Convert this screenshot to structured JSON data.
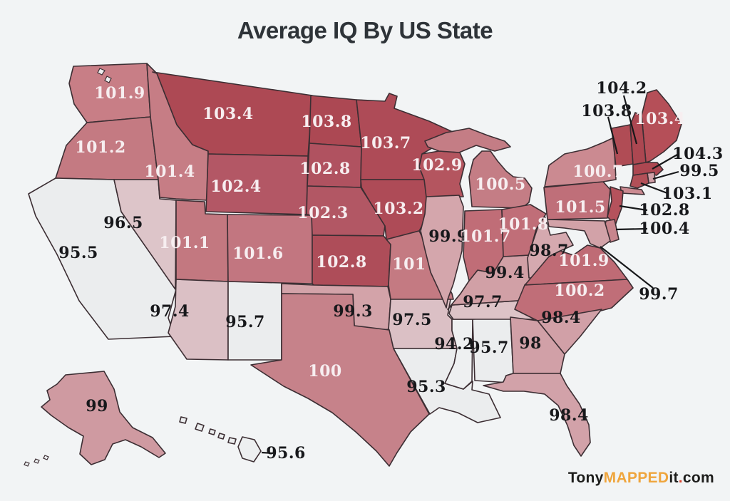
{
  "title": "Average IQ By US State",
  "map": {
    "background_color": "#f2f4f5",
    "border_color": "#3c2e33",
    "label_color_light": "#f7eef0",
    "label_color_dark": "#17181b",
    "island_fill": "#edeff0"
  },
  "states": [
    {
      "id": "WA",
      "name": "Washington",
      "value": "101.9",
      "color": "#c87e86",
      "label": "state",
      "label_style": "light"
    },
    {
      "id": "OR",
      "name": "Oregon",
      "value": "101.2",
      "color": "#c47a82",
      "label": "state",
      "label_style": "light"
    },
    {
      "id": "CA",
      "name": "California",
      "value": "95.5",
      "color": "#ebedee",
      "label": "state",
      "label_style": "dark"
    },
    {
      "id": "NV",
      "name": "Nevada",
      "value": "96.5",
      "color": "#ddc5c9",
      "label": "state",
      "label_style": "dark"
    },
    {
      "id": "ID",
      "name": "Idaho",
      "value": "101.4",
      "color": "#c67d85",
      "label": "state",
      "label_style": "light"
    },
    {
      "id": "MT",
      "name": "Montana",
      "value": "103.4",
      "color": "#ad4954",
      "label": "state",
      "label_style": "light"
    },
    {
      "id": "WY",
      "name": "Wyoming",
      "value": "102.4",
      "color": "#b35765",
      "label": "state",
      "label_style": "light"
    },
    {
      "id": "UT",
      "name": "Utah",
      "value": "101.1",
      "color": "#c37880",
      "label": "state",
      "label_style": "light"
    },
    {
      "id": "AZ",
      "name": "Arizona",
      "value": "97.4",
      "color": "#dbc0c5",
      "label": "state",
      "label_style": "dark"
    },
    {
      "id": "NM",
      "name": "New Mexico",
      "value": "95.7",
      "color": "#ebedee",
      "label": "state",
      "label_style": "dark"
    },
    {
      "id": "CO",
      "name": "Colorado",
      "value": "101.6",
      "color": "#c27680",
      "label": "state",
      "label_style": "light"
    },
    {
      "id": "ND",
      "name": "North Dakota",
      "value": "103.8",
      "color": "#ac4853",
      "label": "state",
      "label_style": "light"
    },
    {
      "id": "SD",
      "name": "South Dakota",
      "value": "102.8",
      "color": "#b05260",
      "label": "state",
      "label_style": "light"
    },
    {
      "id": "NE",
      "name": "Nebraska",
      "value": "102.3",
      "color": "#b25764",
      "label": "state",
      "label_style": "light"
    },
    {
      "id": "KS",
      "name": "Kansas",
      "value": "102.8",
      "color": "#ae4d59",
      "label": "state",
      "label_style": "light"
    },
    {
      "id": "OK",
      "name": "Oklahoma",
      "value": "99.3",
      "color": "#d3a3a9",
      "label": "state",
      "label_style": "dark"
    },
    {
      "id": "TX",
      "name": "Texas",
      "value": "100",
      "color": "#c6828a",
      "label": "state",
      "label_style": "light"
    },
    {
      "id": "MN",
      "name": "Minnesota",
      "value": "103.7",
      "color": "#ae4b57",
      "label": "state",
      "label_style": "light"
    },
    {
      "id": "IA",
      "name": "Iowa",
      "value": "103.2",
      "color": "#ae4b57",
      "label": "state",
      "label_style": "light"
    },
    {
      "id": "MO",
      "name": "Missouri",
      "value": "101",
      "color": "#c47a82",
      "label": "state",
      "label_style": "light"
    },
    {
      "id": "AR",
      "name": "Arkansas",
      "value": "97.5",
      "color": "#dbc0c5",
      "label": "state",
      "label_style": "dark"
    },
    {
      "id": "LA",
      "name": "Louisiana",
      "value": "95.3",
      "color": "#ebedee",
      "label": "state",
      "label_style": "dark"
    },
    {
      "id": "WI",
      "name": "Wisconsin",
      "value": "102.9",
      "color": "#b4555f",
      "label": "state",
      "label_style": "light"
    },
    {
      "id": "IL",
      "name": "Illinois",
      "value": "99.9",
      "color": "#d4a6ac",
      "label": "state",
      "label_style": "dark"
    },
    {
      "id": "MS",
      "name": "Mississippi",
      "value": "94.2",
      "color": "#eef0f1",
      "label": "state",
      "label_style": "dark"
    },
    {
      "id": "AL",
      "name": "Alabama",
      "value": "95.7",
      "color": "#ebedee",
      "label": "state",
      "label_style": "dark"
    },
    {
      "id": "TN",
      "name": "Tennessee",
      "value": "97.7",
      "color": "#ddc3c7",
      "label": "state",
      "label_style": "dark"
    },
    {
      "id": "KY",
      "name": "Kentucky",
      "value": "99.4",
      "color": "#d1a0a6",
      "label": "state",
      "label_style": "dark"
    },
    {
      "id": "IN",
      "name": "Indiana",
      "value": "101.7",
      "color": "#c06d77",
      "label": "state",
      "label_style": "light"
    },
    {
      "id": "MI",
      "name": "Michigan",
      "value": "100.5",
      "color": "#c47d85",
      "label": "state",
      "label_style": "light"
    },
    {
      "id": "OH",
      "name": "Ohio",
      "value": "101.8",
      "color": "#c06e78",
      "label": "state",
      "label_style": "light"
    },
    {
      "id": "WV",
      "name": "West Virginia",
      "value": "98.7",
      "color": "#d5a9af",
      "label": "state",
      "label_style": "dark"
    },
    {
      "id": "VA",
      "name": "Virginia",
      "value": "101.9",
      "color": "#bf6b75",
      "label": "state",
      "label_style": "light"
    },
    {
      "id": "NC",
      "name": "North Carolina",
      "value": "100.2",
      "color": "#c06e78",
      "label": "state",
      "label_style": "light"
    },
    {
      "id": "SC",
      "name": "South Carolina",
      "value": "98.4",
      "color": "#d1a0a7",
      "label": "state",
      "label_style": "dark"
    },
    {
      "id": "GA",
      "name": "Georgia",
      "value": "98",
      "color": "#d1a0a7",
      "label": "state",
      "label_style": "dark"
    },
    {
      "id": "FL",
      "name": "Florida",
      "value": "98.4",
      "color": "#d2a2a9",
      "label": "state",
      "label_style": "dark"
    },
    {
      "id": "PA",
      "name": "Pennsylvania",
      "value": "101.5",
      "color": "#bf6f79",
      "label": "state",
      "label_style": "light"
    },
    {
      "id": "NY",
      "name": "New York",
      "value": "100.7",
      "color": "#cb8a91",
      "label": "state",
      "label_style": "light"
    },
    {
      "id": "ME",
      "name": "Maine",
      "value": "103.4",
      "color": "#b54f58",
      "label": "state",
      "label_style": "light"
    },
    {
      "id": "VT",
      "name": "Vermont",
      "value": "103.8",
      "color": "#b04c55",
      "label": "callout",
      "label_style": "dark"
    },
    {
      "id": "NH",
      "name": "New Hampshire",
      "value": "104.2",
      "color": "#ac4751",
      "label": "callout",
      "label_style": "dark"
    },
    {
      "id": "MA",
      "name": "Massachusetts",
      "value": "104.3",
      "color": "#ad4751",
      "label": "callout",
      "label_style": "dark"
    },
    {
      "id": "RI",
      "name": "Rhode Island",
      "value": "99.5",
      "color": "#d0a0a7",
      "label": "callout",
      "label_style": "dark"
    },
    {
      "id": "CT",
      "name": "Connecticut",
      "value": "103.1",
      "color": "#b25058",
      "label": "callout",
      "label_style": "dark"
    },
    {
      "id": "NJ",
      "name": "New Jersey",
      "value": "102.8",
      "color": "#b5525c",
      "label": "callout",
      "label_style": "dark"
    },
    {
      "id": "DE",
      "name": "Delaware",
      "value": "100.4",
      "color": "#c8858d",
      "label": "callout",
      "label_style": "dark"
    },
    {
      "id": "MD",
      "name": "Maryland",
      "value": "99.7",
      "color": "#d2a2a8",
      "label": "callout",
      "label_style": "dark"
    },
    {
      "id": "AK",
      "name": "Alaska",
      "value": "99",
      "color": "#cf9aa1",
      "label": "state",
      "label_style": "dark"
    },
    {
      "id": "HI",
      "name": "Hawaii",
      "value": "95.6",
      "color": "#edeff0",
      "label": "callout",
      "label_style": "dark"
    }
  ],
  "watermark": {
    "segments": [
      {
        "text": "Tony",
        "color": "#1d1d1b"
      },
      {
        "text": "MAPPED",
        "color": "#efa53d"
      },
      {
        "text": "it",
        "color": "#1d1d1b"
      },
      {
        "text": ".",
        "color": "#d8432f"
      },
      {
        "text": "com",
        "color": "#1d1d1b"
      }
    ]
  }
}
